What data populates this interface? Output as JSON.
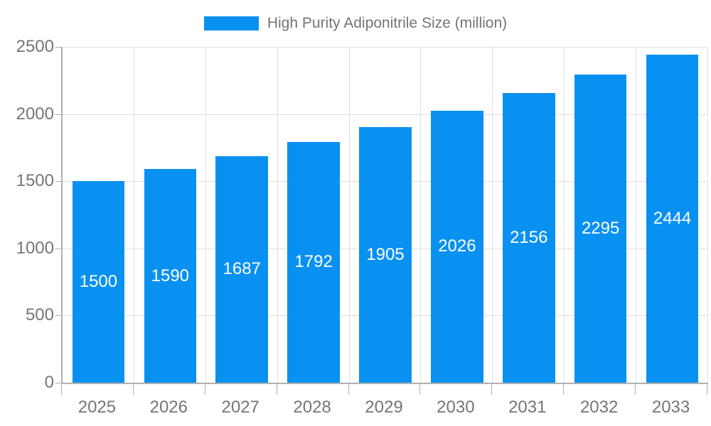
{
  "chart_data": {
    "type": "bar",
    "title": "High Purity Adiponitrile Size (million)",
    "legend": [
      "High Purity Adiponitrile Size (million)"
    ],
    "legend_position": "top",
    "categories": [
      "2025",
      "2026",
      "2027",
      "2028",
      "2029",
      "2030",
      "2031",
      "2032",
      "2033"
    ],
    "series": [
      {
        "name": "High Purity Adiponitrile Size (million)",
        "values": [
          1500,
          1590,
          1687,
          1792,
          1905,
          2026,
          2156,
          2295,
          2444
        ]
      }
    ],
    "data_labels": [
      "1500",
      "1590",
      "1687",
      "1792",
      "1905",
      "2026",
      "2156",
      "2295",
      "2444"
    ],
    "xlabel": "",
    "ylabel": "",
    "ylim": [
      0,
      2500
    ],
    "yticks": [
      0,
      500,
      1000,
      1500,
      2000,
      2500
    ],
    "grid": true,
    "colors": {
      "bar": "#0991f2",
      "bar_label": "#ffffff",
      "axis_text": "#757575",
      "grid_line": "#e0e0e0",
      "axis_line": "#b0b0b0",
      "background": "#ffffff"
    }
  }
}
